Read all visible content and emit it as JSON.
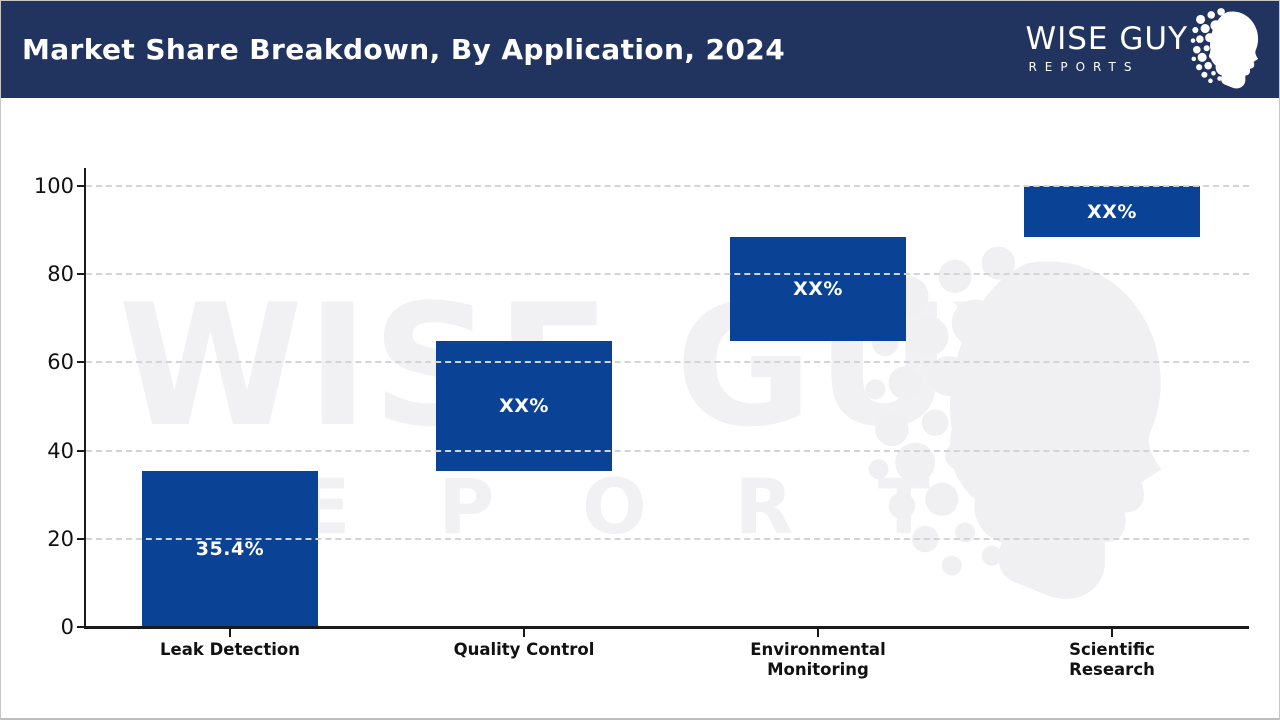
{
  "header": {
    "title": "Market Share Breakdown, By Application, 2024",
    "logo": {
      "line1": "WISE GUY",
      "line2": "REPORTS"
    }
  },
  "watermark": {
    "line1": "WISE GUY",
    "line2": "REPORTS"
  },
  "colors": {
    "header_bg": "#213460",
    "bar_blue": "#0a4296",
    "grid_gray": "#d4d4d4",
    "axis_black": "#1a1a1a",
    "watermark_gray": "#f1f1f4"
  },
  "chart_data": {
    "type": "bar",
    "subtype": "waterfall-floating-bars",
    "title": "Market Share Breakdown, By Application, 2024",
    "categories": [
      "Leak Detection",
      "Quality Control",
      "Environmental Monitoring",
      "Scientific Research"
    ],
    "series": [
      {
        "name": "Market Share (%)",
        "segments": [
          {
            "start": 0,
            "end": 35.4,
            "label": "35.4%"
          },
          {
            "start": 35.4,
            "end": 64.8,
            "label": "XX%"
          },
          {
            "start": 64.8,
            "end": 88.4,
            "label": "XX%"
          },
          {
            "start": 88.4,
            "end": 100,
            "label": "XX%"
          }
        ]
      }
    ],
    "xlabel": "",
    "ylabel": "",
    "ylim": [
      0,
      100
    ],
    "yticks": [
      0,
      20,
      40,
      60,
      80,
      100
    ],
    "grid": "horizontal-dashed",
    "legend": "none",
    "bar_color": "#0a4296",
    "value_label_color": "#ffffff"
  }
}
